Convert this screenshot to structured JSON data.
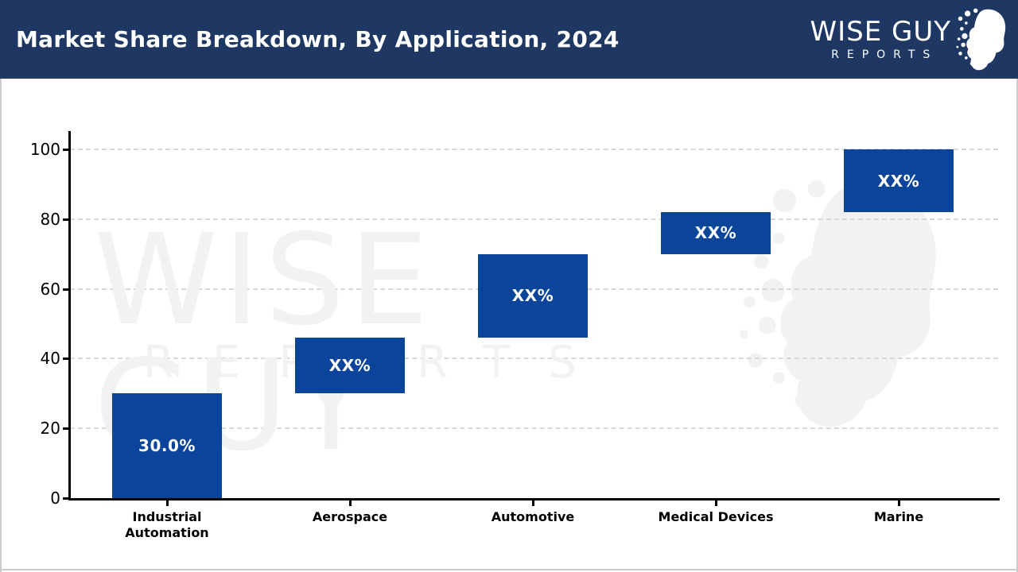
{
  "header": {
    "title": "Market Share Breakdown, By Application, 2024",
    "logo": {
      "name": "WISE GUY",
      "tagline": "REPORTS"
    }
  },
  "watermark": {
    "name": "WISE GUY",
    "tagline": "REPORTS"
  },
  "colors": {
    "header_bg": "#1f3863",
    "header_text": "#ffffff",
    "bar_fill": "#0a449b",
    "bar_label_text": "#ffffff",
    "axis": "#000000",
    "tick_label": "#000000",
    "gridline": "#d8d8d8",
    "watermark": "#f2f2f2",
    "page_border": "#cccccc",
    "background": "#ffffff"
  },
  "chart_data": {
    "type": "bar",
    "variant": "waterfall",
    "title": "Market Share Breakdown, By Application, 2024",
    "categories": [
      "Industrial Automation",
      "Aerospace",
      "Automotive",
      "Medical Devices",
      "Marine"
    ],
    "x_tick_labels": [
      "Industrial\nAutomation",
      "Aerospace",
      "Automotive",
      "Medical Devices",
      "Marine"
    ],
    "segments": [
      {
        "category": "Industrial Automation",
        "start": 0,
        "end": 30,
        "value": 30,
        "label": "30.0%"
      },
      {
        "category": "Aerospace",
        "start": 30,
        "end": 46,
        "value": 16,
        "label": "XX%"
      },
      {
        "category": "Automotive",
        "start": 46,
        "end": 70,
        "value": 24,
        "label": "XX%"
      },
      {
        "category": "Medical Devices",
        "start": 70,
        "end": 82,
        "value": 12,
        "label": "XX%"
      },
      {
        "category": "Marine",
        "start": 82,
        "end": 100,
        "value": 18,
        "label": "XX%"
      }
    ],
    "ylim": [
      0,
      100
    ],
    "yticks": [
      0,
      20,
      40,
      60,
      80,
      100
    ],
    "xlabel": "",
    "ylabel": "",
    "grid": "horizontal-dashed",
    "legend": null
  }
}
